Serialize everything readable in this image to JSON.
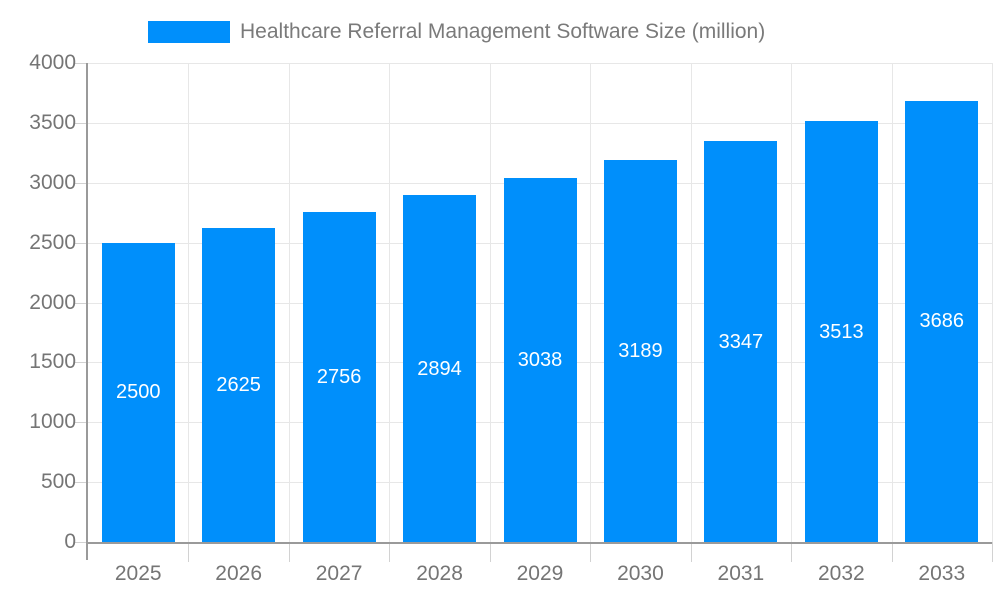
{
  "chart_data": {
    "type": "bar",
    "title": "Healthcare Referral Management Software Size (million)",
    "categories": [
      "2025",
      "2026",
      "2027",
      "2028",
      "2029",
      "2030",
      "2031",
      "2032",
      "2033"
    ],
    "values": [
      2500,
      2625,
      2756,
      2894,
      3038,
      3189,
      3347,
      3513,
      3686
    ],
    "series_name": "Healthcare Referral Management Software Size (million)",
    "xlabel": "",
    "ylabel": "",
    "ylim": [
      0,
      4000
    ],
    "ytick_step": 500,
    "ytick_labels": [
      "0",
      "500",
      "1000",
      "1500",
      "2000",
      "2500",
      "3000",
      "3500",
      "4000"
    ],
    "grid": true,
    "legend_position": "top",
    "value_labels": "inside-center",
    "colors": {
      "bar": "#008FFB",
      "bar_label": "#ffffff",
      "axis_label": "#757575",
      "legend_text": "#7a7a7a",
      "gridline": "#e7e7e7",
      "axis_line": "#9a9a9a",
      "tick": "#d2d2d2",
      "background": "#ffffff"
    }
  }
}
